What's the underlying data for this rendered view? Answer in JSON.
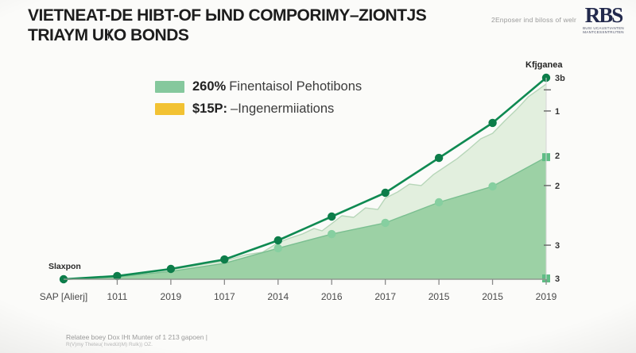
{
  "title": {
    "line1": "VIETNEAT-DE HIBT-OF ЬIND COMPORIMY–ZIONTJS",
    "line2": "TRIAYM UҜO BONDS"
  },
  "header": {
    "note": "2Enposer ind biloss of welr",
    "logo": {
      "text": "RBS",
      "sub1": "BUSI UCAUSTIANTEN",
      "sub2": "MANTCESSNTRIJTEN"
    }
  },
  "legend": {
    "items": [
      {
        "color": "#85c89d",
        "bold": "260%",
        "rest": "Finentaisol Pehotibons"
      },
      {
        "color": "#f2c233",
        "bold": "$15P:",
        "rest": "–Ingenermiiations"
      }
    ]
  },
  "chart_data": {
    "type": "area",
    "title": "",
    "xlabel": "",
    "ylabel": "",
    "ylim": [
      0,
      100
    ],
    "grid": false,
    "legend_position": "top-left",
    "start_label": "Slaxpon",
    "right_axis_title": "Kfjganea",
    "categories": [
      "SAP [Alierj]",
      "1011",
      "2019",
      "1017",
      "2014",
      "2016",
      "2017",
      "2015",
      "2015",
      "2019"
    ],
    "right_axis": [
      {
        "value": 100,
        "label": "3b",
        "dash": false
      },
      {
        "value": 94,
        "label": "",
        "dash": true
      },
      {
        "value": 83.5,
        "label": "1",
        "dash": true
      },
      {
        "value": 61.4,
        "label": "2",
        "dash": false
      },
      {
        "value": 46.5,
        "label": "2",
        "dash": true
      },
      {
        "value": 16.9,
        "label": "3",
        "dash": true
      },
      {
        "value": 0.4,
        "label": "3",
        "dash": false
      }
    ],
    "series": [
      {
        "name": "light-jagged-area",
        "type": "area",
        "fill": "#e2efde",
        "stroke": "#b7d6b9",
        "x": [
          0,
          1,
          2,
          3,
          3.41,
          3.71,
          4,
          4.23,
          4.45,
          4.67,
          4.82,
          5,
          5.19,
          5.41,
          5.63,
          5.86,
          6,
          6.23,
          6.45,
          6.67,
          6.9,
          7.12,
          7.34,
          7.56,
          7.78,
          8,
          8.23,
          8.45,
          8.67,
          9
        ],
        "values": [
          0,
          1.6,
          4.7,
          9.1,
          12.2,
          13.4,
          18.1,
          20.5,
          22.4,
          25.2,
          24.0,
          27.6,
          31.5,
          30.7,
          35.4,
          34.6,
          40.2,
          43.3,
          47.2,
          46.5,
          52.0,
          55.9,
          59.8,
          64.6,
          69.7,
          72.4,
          78.7,
          84.3,
          90.6,
          96.9
        ]
      },
      {
        "name": "medium-area",
        "type": "area",
        "fill": "#9cd1a5",
        "stroke": "#7abf90",
        "marker": "circle",
        "marker_color": "#86cfa0",
        "marker_x": [
          4,
          5,
          6,
          7,
          8
        ],
        "end_square_color": "#5fbd85",
        "end_squares": [
          60.6,
          0.4
        ],
        "x": [
          0,
          1,
          2,
          3,
          4,
          5,
          6,
          7,
          8,
          9
        ],
        "values": [
          0,
          1.2,
          3.9,
          7.9,
          15.4,
          22.4,
          28.0,
          38.2,
          46.1,
          60.6
        ]
      },
      {
        "name": "dark-line",
        "type": "line",
        "stroke": "#0f8a52",
        "marker": "circle",
        "marker_color": "#0d7d4a",
        "x": [
          0,
          1,
          2,
          3,
          4,
          5,
          6,
          7,
          8,
          9
        ],
        "values": [
          0,
          1.6,
          5.1,
          9.8,
          19.3,
          31.1,
          42.9,
          60.2,
          77.6,
          100
        ]
      }
    ],
    "axis_colors": {
      "baseline": "#8f998f",
      "tick": "#8a8a8a",
      "right_line": "#d5d5d5",
      "right_dash": "#666666",
      "right_label": "#333333",
      "x_label": "#4a4a4a"
    }
  },
  "footnote": {
    "line1": "Relatee boey Dox IHt Munter of 1 213 gapoen  |",
    "line2": "R(V)my Theteu( hvedüt)M) Rulk)) OZ."
  }
}
